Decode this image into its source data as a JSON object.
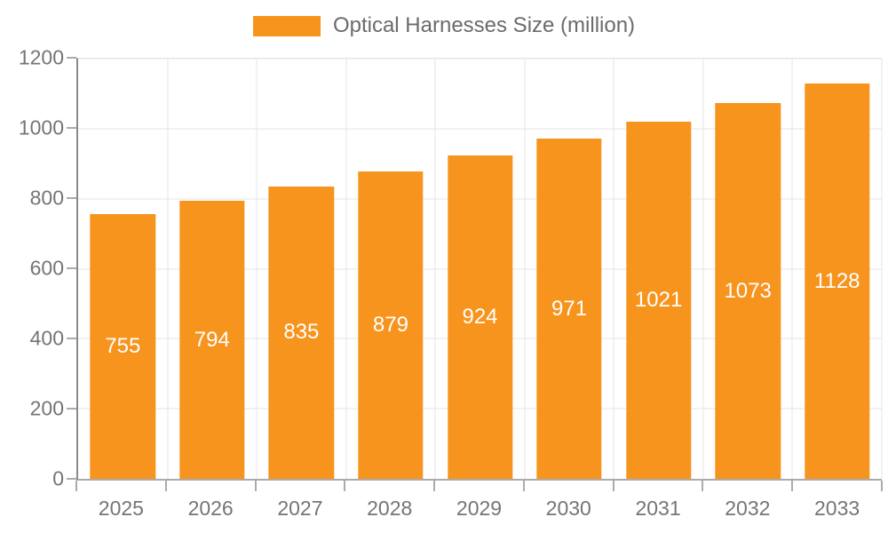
{
  "chart_data": {
    "type": "bar",
    "legend": "Optical Harnesses Size (million)",
    "legend_position": "top",
    "categories": [
      "2025",
      "2026",
      "2027",
      "2028",
      "2029",
      "2030",
      "2031",
      "2032",
      "2033"
    ],
    "values": [
      755,
      794,
      835,
      879,
      924,
      971,
      1021,
      1073,
      1128
    ],
    "ylim": [
      0,
      1200
    ],
    "yticks": [
      0,
      200,
      400,
      600,
      800,
      1000,
      1200
    ],
    "xlabel": "",
    "ylabel": "",
    "grid": true,
    "bar_width_fraction": 0.73,
    "colors": {
      "bar": "#F7941E",
      "grid": "#E5E5E5",
      "axis_y": "#8A8A8A",
      "axis_x": "#ABABAB",
      "tick": "#ABABAB",
      "tick_label": "#757575",
      "legend_text": "#6B6B6B",
      "value_label": "#FFFFFF",
      "background": "#FFFFFF"
    }
  }
}
